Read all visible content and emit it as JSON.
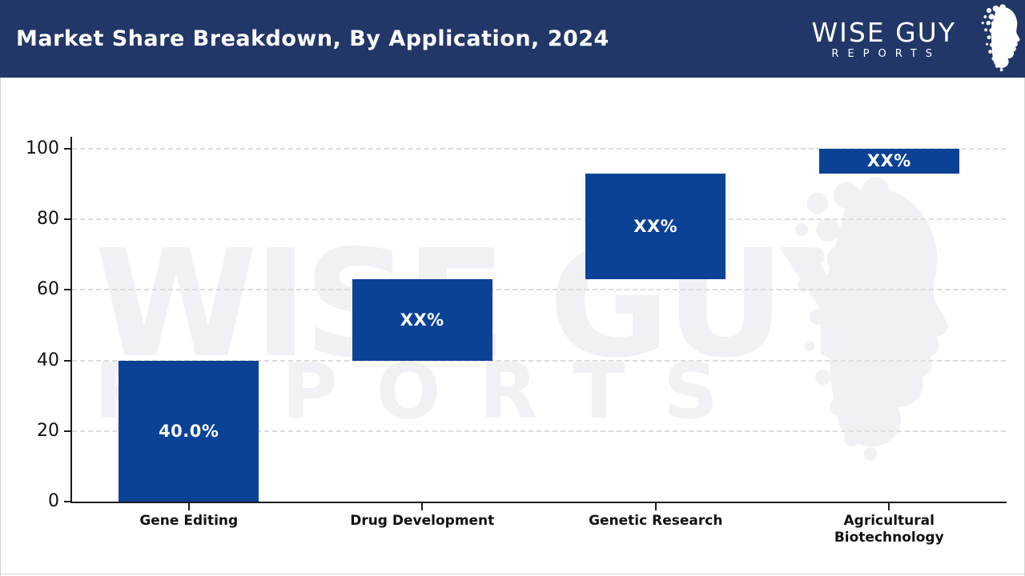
{
  "header": {
    "title": "Market Share Breakdown, By Application, 2024",
    "bg_color": "#213767",
    "logo": {
      "line1": "WISE GUY",
      "line2": "REPORTS"
    }
  },
  "watermark": {
    "line1": "WISE GUY",
    "line2": "REPORTS"
  },
  "chart_data": {
    "type": "bar",
    "subtype": "waterfall",
    "title": "Market Share Breakdown, By Application, 2024",
    "categories": [
      "Gene Editing",
      "Drug Development",
      "Genetic Research",
      "Agricultural Biotechnology"
    ],
    "segments": [
      {
        "category": "Gene Editing",
        "start": 0,
        "end": 40,
        "value": 40,
        "label": "40.0%"
      },
      {
        "category": "Drug Development",
        "start": 40,
        "end": 63,
        "value": 23,
        "label": "XX%"
      },
      {
        "category": "Genetic Research",
        "start": 63,
        "end": 93,
        "value": 30,
        "label": "XX%"
      },
      {
        "category": "Agricultural Biotechnology",
        "start": 93,
        "end": 100,
        "value": 7,
        "label": "XX%"
      }
    ],
    "y_ticks": [
      0,
      20,
      40,
      60,
      80,
      100
    ],
    "ylim": [
      0,
      103.5
    ],
    "xlabel": "",
    "ylabel": "",
    "grid": "horizontal-dashed",
    "legend": "none",
    "bar_color": "#0b4296",
    "bar_label_color": "#ffffff",
    "axis_color": "#1c1c1c",
    "gridline_color": "#dcdcdc"
  }
}
